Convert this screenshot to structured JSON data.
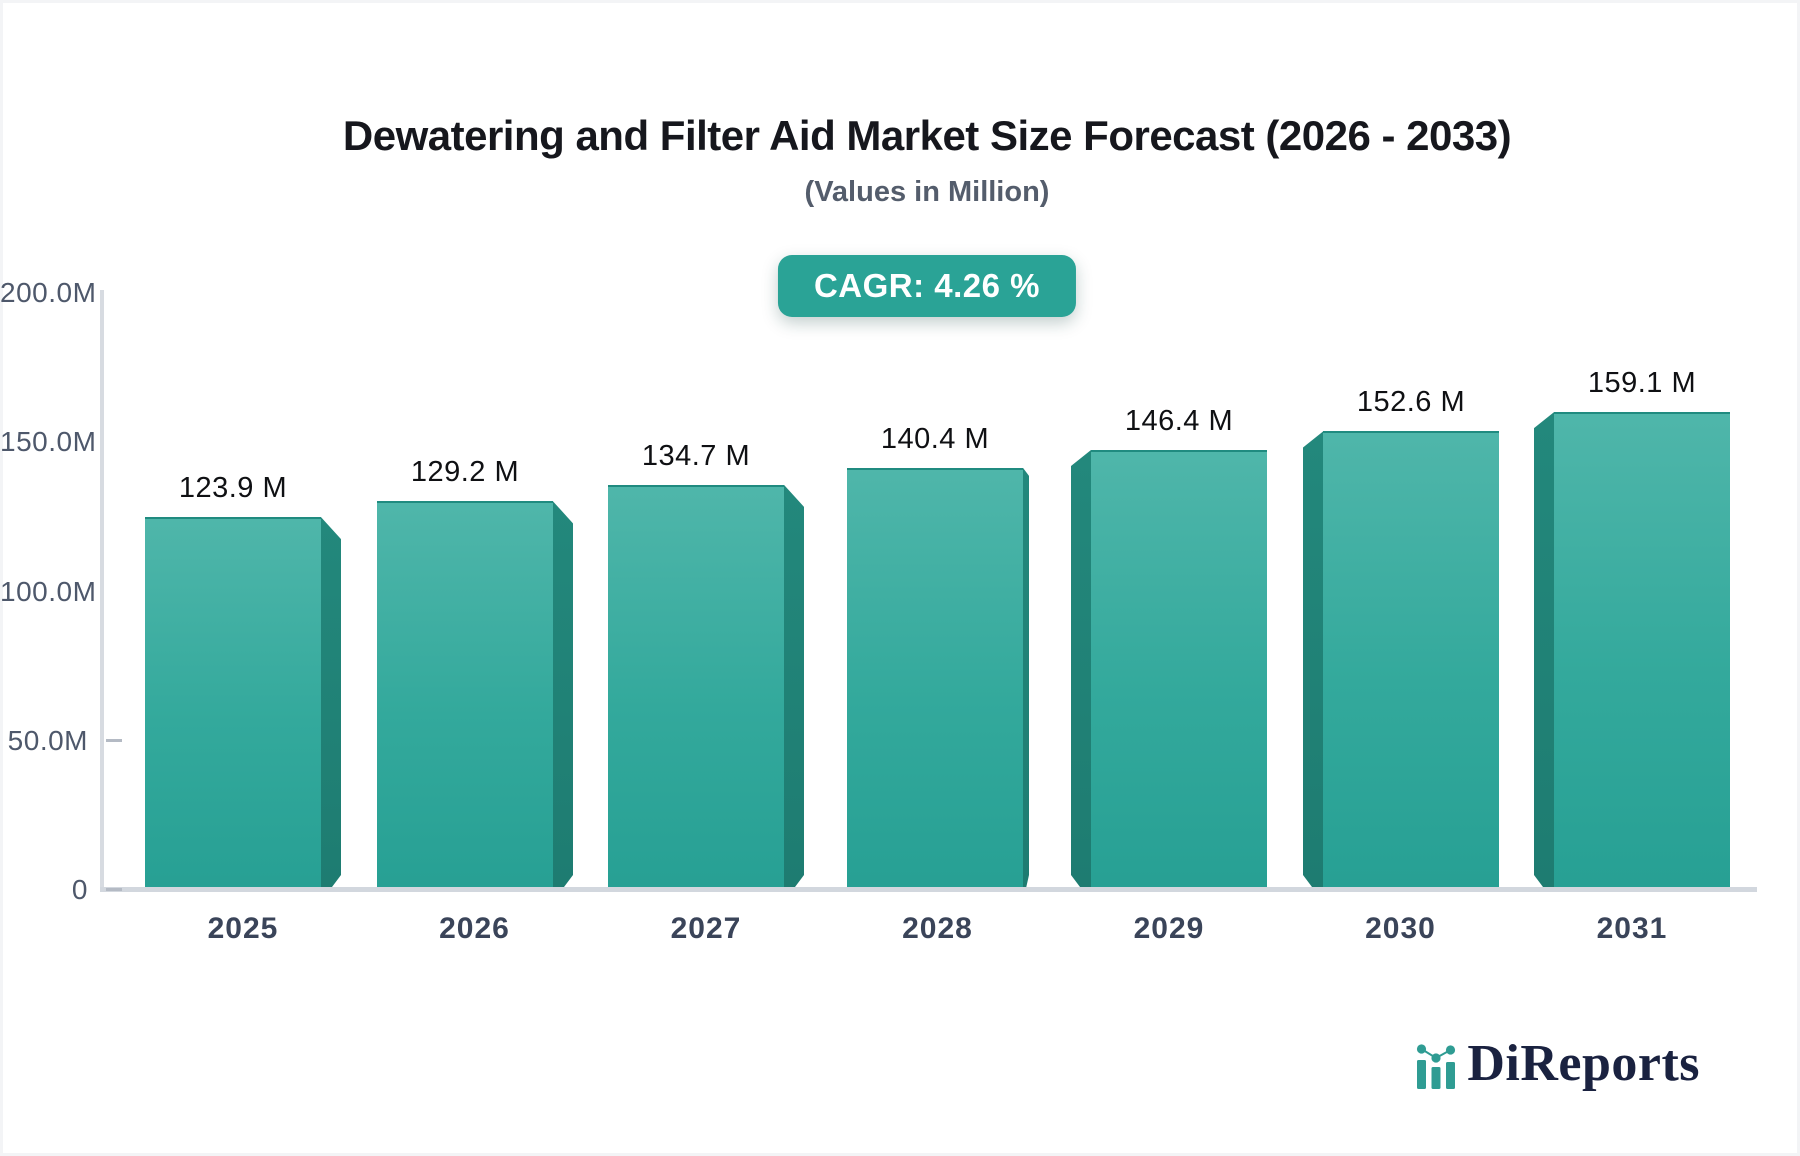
{
  "header": {
    "title": "Dewatering and Filter Aid Market Size Forecast (2026 - 2033)",
    "subtitle": "(Values in Million)"
  },
  "badge": {
    "label": "CAGR: 4.26 %"
  },
  "chart_data": {
    "type": "bar",
    "title": "Dewatering and Filter Aid Market Size Forecast (2026 - 2033)",
    "subtitle": "(Values in Million)",
    "categories": [
      "2025",
      "2026",
      "2027",
      "2028",
      "2029",
      "2030",
      "2031"
    ],
    "values": [
      123.9,
      129.2,
      134.7,
      140.4,
      146.4,
      152.6,
      159.1
    ],
    "bar_labels": [
      "123.9 M",
      "129.2 M",
      "134.7 M",
      "140.4 M",
      "146.4 M",
      "152.6 M",
      "159.1 M"
    ],
    "xlabel": "",
    "ylabel": "",
    "ylim": [
      0,
      200
    ],
    "y_ticks": [
      {
        "label": "200.0M",
        "value": 200
      },
      {
        "label": "150.0M",
        "value": 150
      },
      {
        "label": "100.0M",
        "value": 100
      },
      {
        "label": "50.0M",
        "value": 50
      },
      {
        "label": "0",
        "value": 0
      }
    ],
    "grid": "off",
    "legend": "none",
    "cagr": "4.26 %",
    "colors": {
      "bar_face_top": "#4fb6aa",
      "bar_face_bottom": "#27a094",
      "bar_side": "#1e7c71",
      "badge_bg": "#2aa396",
      "axis_line": "#d7dbe1",
      "title_text": "#16171d",
      "axis_text": "#4e586b"
    }
  },
  "logo": {
    "text": "DiReports",
    "icon": "mini-bar-chart-icon"
  }
}
